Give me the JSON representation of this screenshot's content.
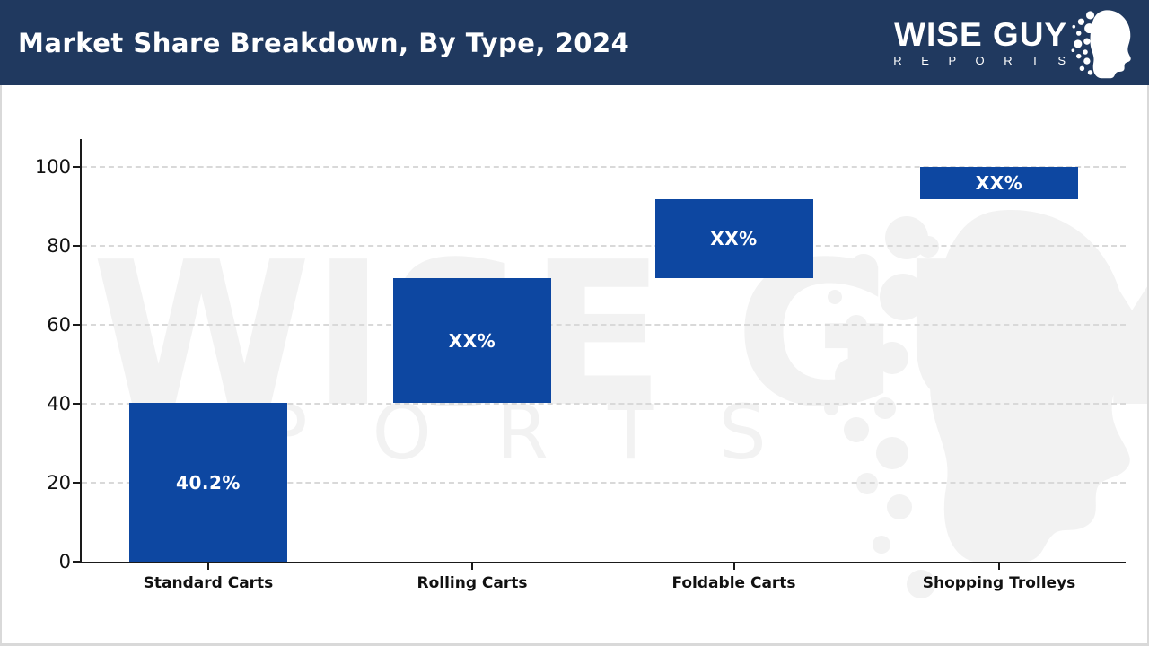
{
  "header": {
    "title": "Market Share Breakdown, By Type, 2024",
    "logo": {
      "line1": "WISE GUY",
      "line2": "R E P O R T S"
    }
  },
  "watermark": {
    "line1": "WISE GUY",
    "line2": "PORTS"
  },
  "chart_data": {
    "type": "bar",
    "subtype": "waterfall",
    "title": "Market Share Breakdown, By Type, 2024",
    "categories": [
      "Standard Carts",
      "Rolling Carts",
      "Foldable Carts",
      "Shopping Trolleys"
    ],
    "segments": [
      {
        "category": "Standard Carts",
        "start": 0,
        "end": 40.2,
        "value": 40.2,
        "display_label": "40.2%"
      },
      {
        "category": "Rolling Carts",
        "start": 40.2,
        "end": 71.8,
        "value": 31.6,
        "display_label": "XX%"
      },
      {
        "category": "Foldable Carts",
        "start": 71.8,
        "end": 91.8,
        "value": 20.0,
        "display_label": "XX%"
      },
      {
        "category": "Shopping Trolleys",
        "start": 91.8,
        "end": 100,
        "value": 8.2,
        "display_label": "XX%"
      }
    ],
    "yticks": [
      0,
      20,
      40,
      60,
      80,
      100
    ],
    "ylim": [
      0,
      105
    ],
    "xlabel": "",
    "ylabel": "",
    "grid": "horizontal-dashed",
    "legend": "none",
    "bar_color": "#0d47a1",
    "bar_label_color": "#ffffff",
    "axis_color": "#1a1a1a",
    "grid_color": "#d9d9d9",
    "header_color": "#20395f",
    "watermark_color": "#f2f2f2"
  }
}
